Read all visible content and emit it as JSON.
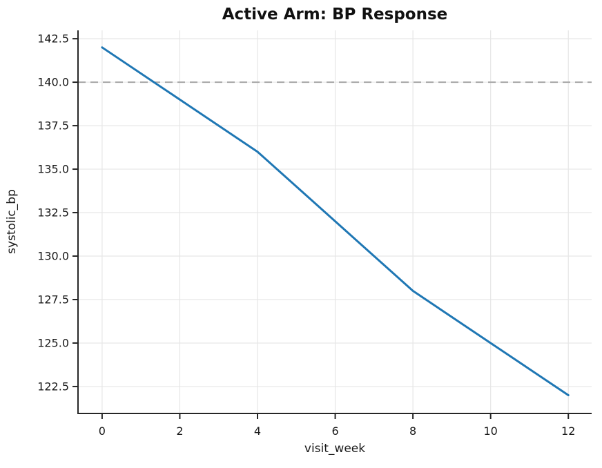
{
  "figure": {
    "background": "#ffffff"
  },
  "chart_data": {
    "type": "line",
    "title": "Active Arm: BP Response",
    "xlabel": "visit_week",
    "ylabel": "systolic_bp",
    "x": [
      0,
      2,
      4,
      6,
      8,
      10,
      12
    ],
    "series": [
      {
        "name": "systolic_bp",
        "values": [
          142,
          139,
          136,
          132,
          128,
          125,
          122
        ],
        "color": "#1f77b4",
        "linewidth": 3
      }
    ],
    "reference_line": {
      "orientation": "horizontal",
      "value": 140,
      "style": "dashed",
      "color": "#ababab",
      "linewidth": 2.2
    },
    "xlim": [
      -0.62,
      12.6
    ],
    "ylim": [
      120.95,
      142.98
    ],
    "xticks": {
      "values": [
        0,
        2,
        4,
        6,
        8,
        10,
        12
      ],
      "labels": [
        "0",
        "2",
        "4",
        "6",
        "8",
        "10",
        "12"
      ]
    },
    "yticks": {
      "values": [
        122.5,
        125.0,
        127.5,
        130.0,
        132.5,
        135.0,
        137.5,
        140.0,
        142.5
      ],
      "labels": [
        "122.5",
        "125.0",
        "127.5",
        "130.0",
        "132.5",
        "135.0",
        "137.5",
        "140.0",
        "142.5"
      ]
    },
    "grid": true,
    "legend": "none",
    "colors": {
      "grid": "#e6e6e6",
      "spine": "#262626",
      "text": "#191919"
    }
  }
}
